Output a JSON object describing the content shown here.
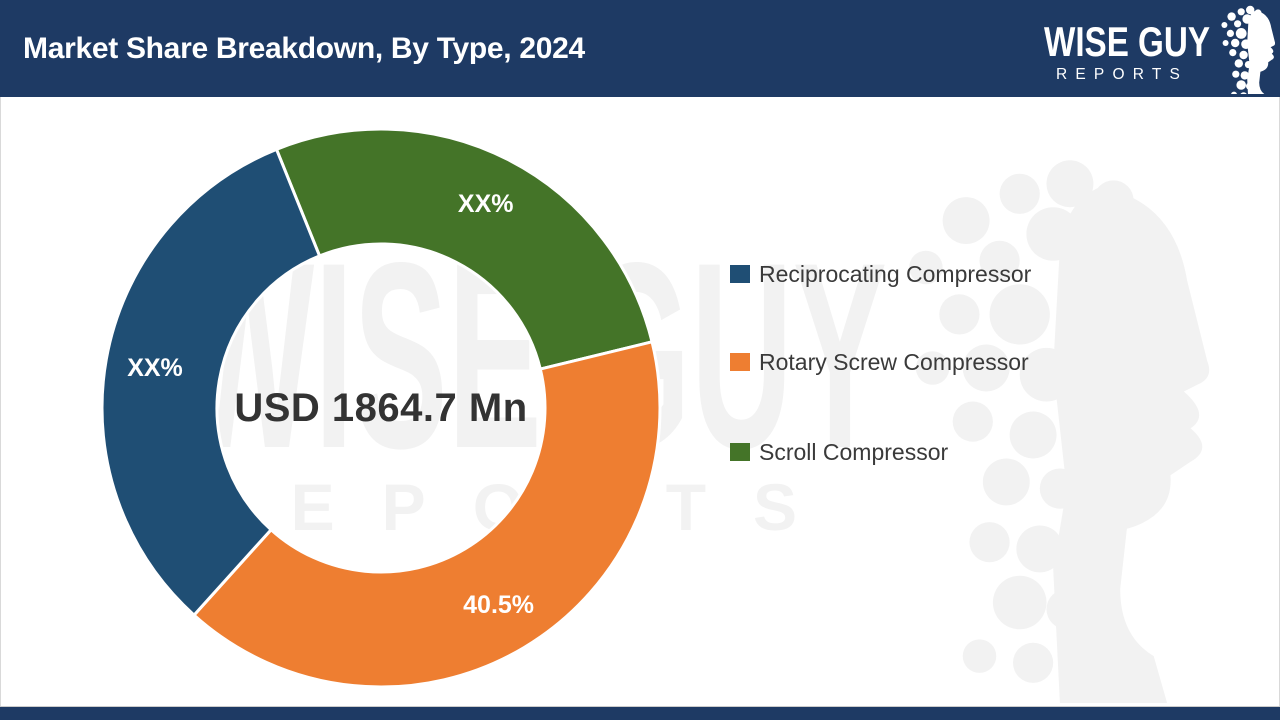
{
  "header": {
    "title": "Market Share Breakdown, By Type, 2024",
    "logo": {
      "line1": "WISE GUY",
      "line2": "REPORTS"
    }
  },
  "watermark": {
    "line1": "WISE GUY",
    "line2": "REPORTS"
  },
  "chart_data": {
    "type": "pie",
    "subtype": "donut",
    "title": "Market Share Breakdown, By Type, 2024",
    "center_label": "USD 1864.7 Mn",
    "start_angle_deg": 112,
    "direction": "clockwise",
    "segments": [
      {
        "name": "Scroll Compressor",
        "value_pct": 27.3,
        "displayed_label": "XX%",
        "color": "#447428"
      },
      {
        "name": "Rotary Screw Compressor",
        "value_pct": 40.5,
        "displayed_label": "40.5%",
        "color": "#ee7e31"
      },
      {
        "name": "Reciprocating Compressor",
        "value_pct": 32.2,
        "displayed_label": "XX%",
        "color": "#1f4e74"
      }
    ],
    "legend": [
      {
        "label": "Reciprocating Compressor",
        "color": "#1f4e74"
      },
      {
        "label": "Rotary Screw Compressor",
        "color": "#ee7e31"
      },
      {
        "label": "Scroll Compressor",
        "color": "#447428"
      }
    ],
    "legend_position": "right"
  },
  "colors": {
    "header_bar": "#1e3a64",
    "footer_bar": "#1e3a64",
    "watermark": "#f2f2f2",
    "center_text": "#333333",
    "legend_text": "#3a3a3a"
  }
}
